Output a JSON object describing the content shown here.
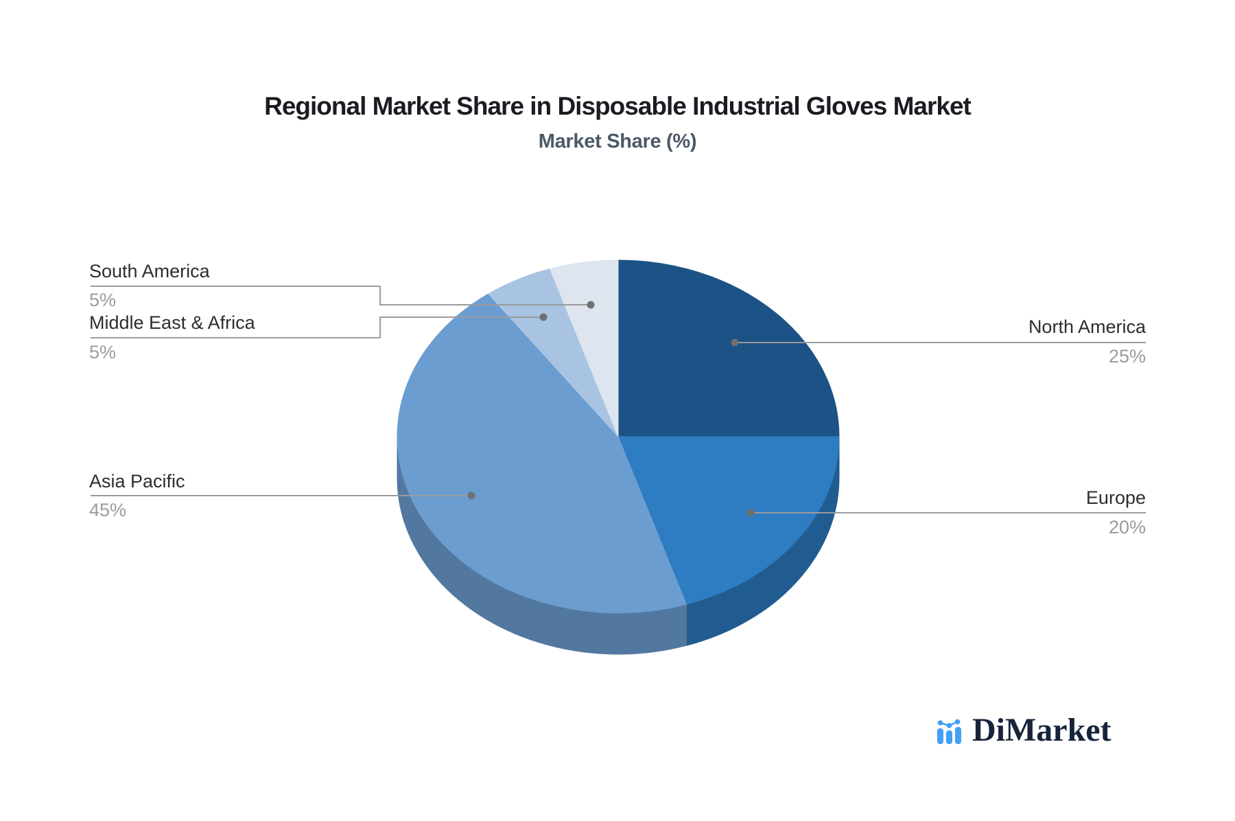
{
  "header": {
    "title": "Regional Market Share in Disposable Industrial Gloves Market",
    "subtitle": "Market Share (%)"
  },
  "chart_data": {
    "type": "pie",
    "title": "Regional Market Share in Disposable Industrial Gloves Market",
    "subtitle": "Market Share (%)",
    "unit": "%",
    "style": "3d",
    "start_angle_deg": 0,
    "direction": "clockwise",
    "legend": "none",
    "labels_position": "callout",
    "slices": [
      {
        "label": "North America",
        "value": 25,
        "display_value": "25%",
        "color": "#1C5285",
        "side_color": "#174467"
      },
      {
        "label": "Europe",
        "value": 20,
        "display_value": "20%",
        "color": "#2E7CC1",
        "side_color": "#215C90"
      },
      {
        "label": "Asia Pacific",
        "value": 45,
        "display_value": "45%",
        "color": "#6B9DD0",
        "side_color": "#52789F"
      },
      {
        "label": "Middle East & Africa",
        "value": 5,
        "display_value": "5%",
        "color": "#A9C4E3",
        "side_color": "#7E96B3"
      },
      {
        "label": "South America",
        "value": 5,
        "display_value": "5%",
        "color": "#DEE5EE",
        "side_color": "#A8B3C2"
      }
    ]
  },
  "branding": {
    "logo_text": "DiMarket",
    "logo_text_color": "#16233B",
    "logo_icon_color": "#42A0F5"
  },
  "colors": {
    "title": "#1D1B22",
    "subtitle": "#4B5866",
    "callout_label": "#2D2D2D",
    "callout_value": "#9B9B9D",
    "callout_line": "#999B9D",
    "callout_dot": "#6E7072",
    "background": "#FFFFFF"
  }
}
